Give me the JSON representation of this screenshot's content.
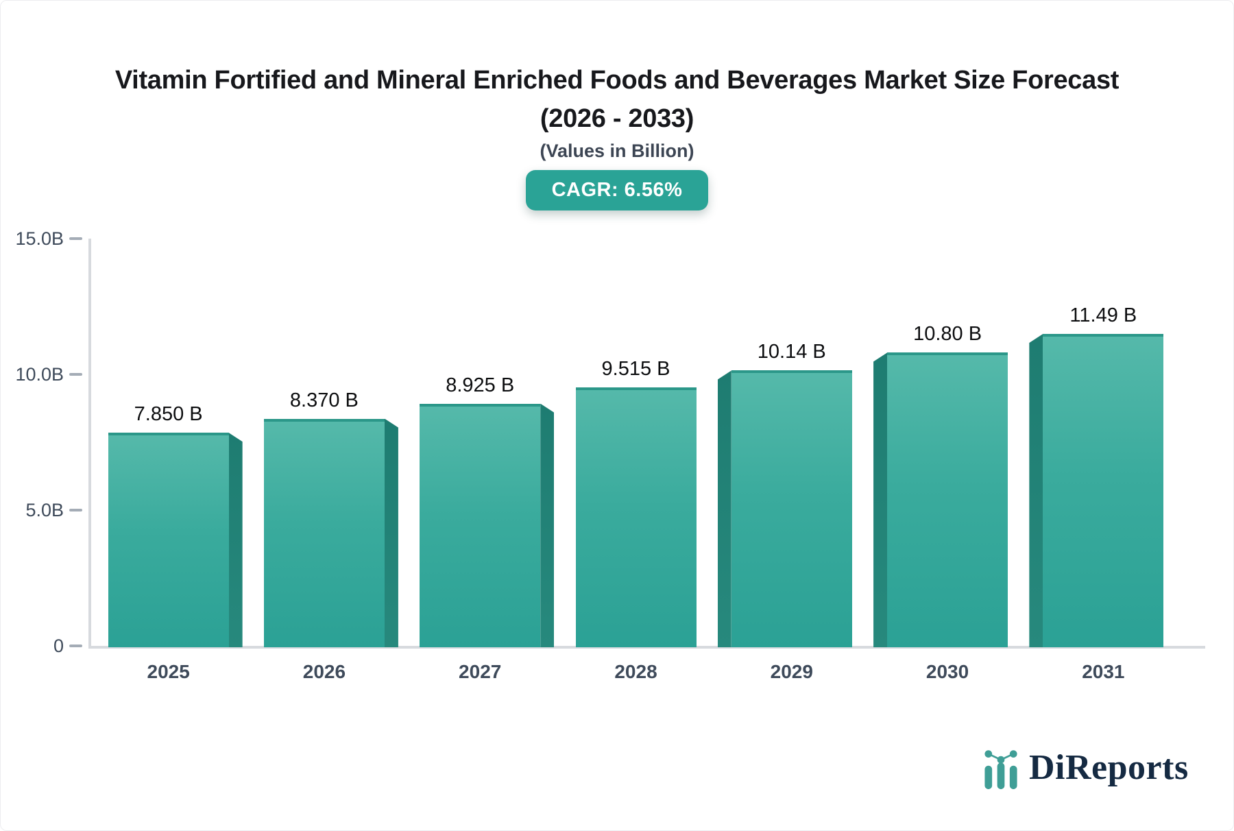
{
  "header": {
    "title_line1": "Vitamin Fortified and Mineral Enriched Foods and Beverages Market Size Forecast",
    "title_line2": "(2026 - 2033)",
    "subtitle": "(Values in Billion)",
    "cagr_badge": "CAGR: 6.56%"
  },
  "brand": {
    "name": "DiReports",
    "icon": "mini-bar-line-chart-icon",
    "icon_color": "#3f9e96",
    "text_color": "#152a42"
  },
  "colors": {
    "bar_face_top": "#55b9aa",
    "bar_face_bottom": "#2ba195",
    "bar_side": "#1e7c71",
    "badge_background": "#2aa396",
    "axis_line": "#d7dade",
    "tick_text": "#3e4a5a",
    "value_text": "#0c0d0f"
  },
  "chart_data": {
    "type": "bar",
    "title": "Vitamin Fortified and Mineral Enriched Foods and Beverages Market Size Forecast (2026 - 2033)",
    "subtitle": "(Values in Billion)",
    "annotation": "CAGR: 6.56%",
    "categories": [
      "2025",
      "2026",
      "2027",
      "2028",
      "2029",
      "2030",
      "2031"
    ],
    "values": [
      7.85,
      8.37,
      8.925,
      9.515,
      10.14,
      10.8,
      11.49
    ],
    "value_labels": [
      "7.850 B",
      "8.370 B",
      "8.925 B",
      "9.515 B",
      "10.14 B",
      "10.80 B",
      "11.49 B"
    ],
    "xlabel": "",
    "ylabel": "",
    "unit": "Billion",
    "ylim": [
      0,
      15
    ],
    "yticks": [
      {
        "value": 0,
        "label": "0"
      },
      {
        "value": 5,
        "label": "5.0B"
      },
      {
        "value": 10,
        "label": "10.0B"
      },
      {
        "value": 15,
        "label": "15.0B"
      }
    ],
    "grid": false,
    "legend": false,
    "bar_style": "3d-perspective-from-center"
  }
}
